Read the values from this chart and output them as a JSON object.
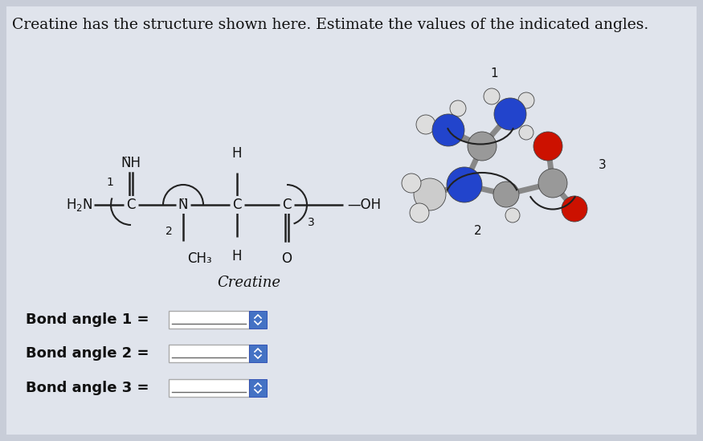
{
  "title": "Creatine has the structure shown here. Estimate the values of the indicated angles.",
  "title_fontsize": 13.5,
  "bg_color": "#c8cdd8",
  "panel_color": "#dce0e8",
  "structure_label": "Creatine",
  "bond_angle_labels": [
    "Bond angle 1 =",
    "Bond angle 2 =",
    "Bond angle 3 ="
  ],
  "spinner_color": "#4472c4",
  "text_color": "#111111",
  "line_color": "#222222",
  "blue_atom": "#2244cc",
  "gray_atom": "#999999",
  "lgray_atom": "#cccccc",
  "red_atom": "#cc1100",
  "white_atom": "#dddddd"
}
